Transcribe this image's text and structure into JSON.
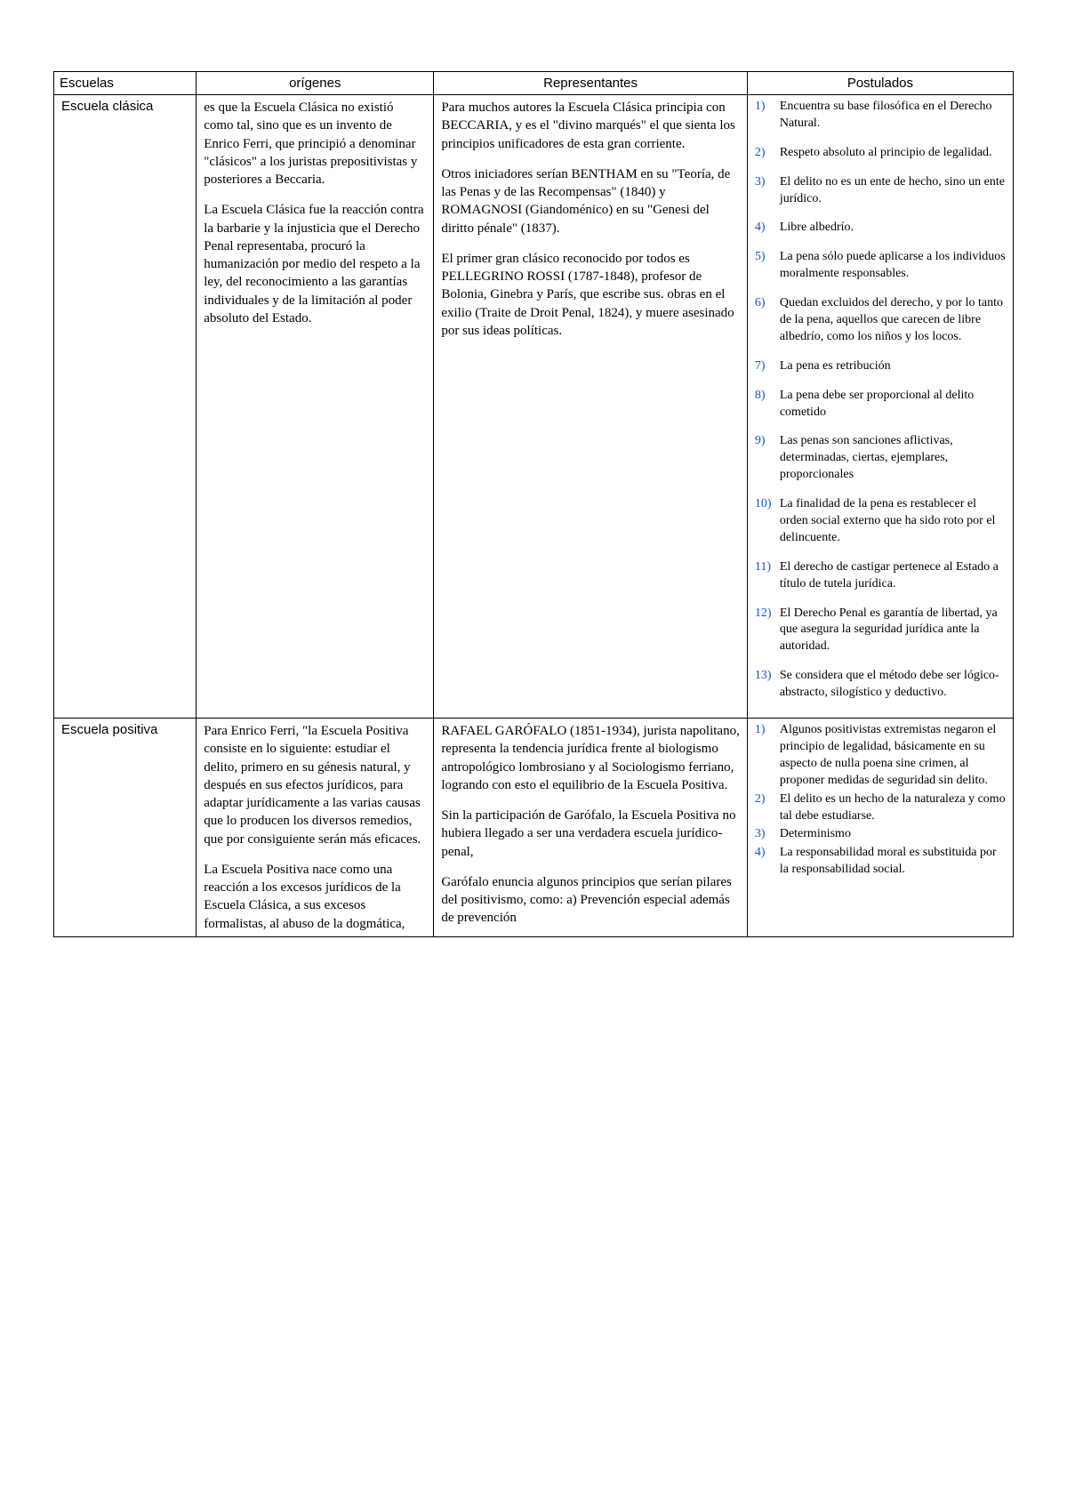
{
  "headers": {
    "col1": "Escuelas",
    "col2": "orígenes",
    "col3": "Representantes",
    "col4": "Postulados"
  },
  "rows": [
    {
      "school": "Escuela clásica",
      "origenes": [
        "es que la Escuela Clásica no existió como tal, sino que es un invento de Enrico Ferri, que principió a denominar \"clásicos\" a los juristas prepositivistas y posteriores a Beccaria.",
        "La Escuela Clásica fue la reacción contra la barbarie y la injusticia que el Derecho Penal representaba, procuró la humanización por medio del respeto a la ley, del reconocimiento a las garantías individuales y de la limitación al poder absoluto del Estado."
      ],
      "representantes": [
        "Para muchos autores la Escuela Clásica principia con BECCARIA, y es el \"divino marqués\" el que sienta los principios unificadores de esta gran corriente.",
        "Otros iniciadores serían BENTHAM en su \"Teoría, de las Penas y de las Recompensas\" (1840) y ROMAGNOSI (Giandoménico) en su \"Genesi del diritto pénale\" (1837).",
        "El primer gran clásico reconocido por todos es PELLEGRINO ROSSI (1787-1848), profesor de Bolonia, Ginebra y París, que escribe sus. obras en el exilio (Traite de Droit Penal, 1824), y muere asesinado por sus ideas políticas."
      ],
      "postulados_tight": false,
      "postulados": [
        {
          "n": "1)",
          "t": "Encuentra su base filosófica en el Derecho Natural."
        },
        {
          "n": "2)",
          "t": "Respeto absoluto al principio de legalidad."
        },
        {
          "n": "3)",
          "t": "El delito no es un ente de hecho, sino un ente jurídico."
        },
        {
          "n": "4)",
          "t": "Libre albedrío."
        },
        {
          "n": "5)",
          "t": " La pena sólo puede aplicarse a los individuos moralmente responsables."
        },
        {
          "n": "6)",
          "t": "Quedan excluidos del derecho, y por lo tanto de la pena, aquellos que carecen de libre albedrío, como los niños y los locos."
        },
        {
          "n": "7)",
          "t": "La pena es retribución"
        },
        {
          "n": "8)",
          "t": "La pena debe ser proporcional al delito cometido"
        },
        {
          "n": "9)",
          "t": "Las penas son sanciones aflictivas, determinadas, ciertas, ejemplares, proporcionales"
        },
        {
          "n": "10)",
          "t": "La finalidad de la pena es restablecer el orden social externo que ha sido roto por el delincuente."
        },
        {
          "n": "11)",
          "t": "El derecho de castigar pertenece al Estado a título de tutela jurídica."
        },
        {
          "n": "12)",
          "t": "El Derecho Penal es garantía de libertad, ya que asegura la seguridad jurídica ante la autoridad."
        },
        {
          "n": "13)",
          "t": "Se considera que el método debe ser lógico-abstracto, silogístico y deductivo."
        }
      ]
    },
    {
      "school": "Escuela positiva",
      "origenes": [
        "Para Enrico Ferri, \"la Escuela Positiva consiste en lo siguiente: estudiar el delito, primero en su génesis natural, y después en sus efectos jurídicos, para adaptar jurídicamente a las varias causas que lo producen los diversos remedios, que por consiguiente serán más eficaces.",
        "La Escuela Positiva nace como una reacción a los excesos jurídicos de la Escuela Clásica, a sus excesos formalistas, al abuso de la dogmática,"
      ],
      "representantes": [
        "RAFAEL GARÓFALO (1851-1934), jurista napolitano, representa la tendencia jurídica frente al biologismo antropológico lombrosiano y al Sociologismo ferriano, logrando con esto el equilibrio de la Escuela Positiva.",
        "Sin la participación de Garófalo, la Escuela Positiva no hubiera llegado a ser una verdadera escuela jurídico-penal,",
        "Garófalo enuncia algunos principios que serían pilares del positivismo, como: a) Prevención especial además de prevención"
      ],
      "postulados_tight": true,
      "postulados": [
        {
          "n": "1)",
          "t": "Algunos positivistas extremistas negaron el principio de legalidad, básicamente en su aspecto de nulla poena sine crimen, al proponer medidas de seguridad sin delito."
        },
        {
          "n": "2)",
          "t": "El delito es un hecho de la naturaleza y como tal debe estudiarse."
        },
        {
          "n": "3)",
          "t": "Determinismo"
        },
        {
          "n": "4)",
          "t": "La responsabilidad moral es substituida por la responsabilidad social."
        }
      ]
    }
  ],
  "colors": {
    "number_color": "#1155cc",
    "text_color": "#000000",
    "border_color": "#000000",
    "background": "#ffffff"
  }
}
